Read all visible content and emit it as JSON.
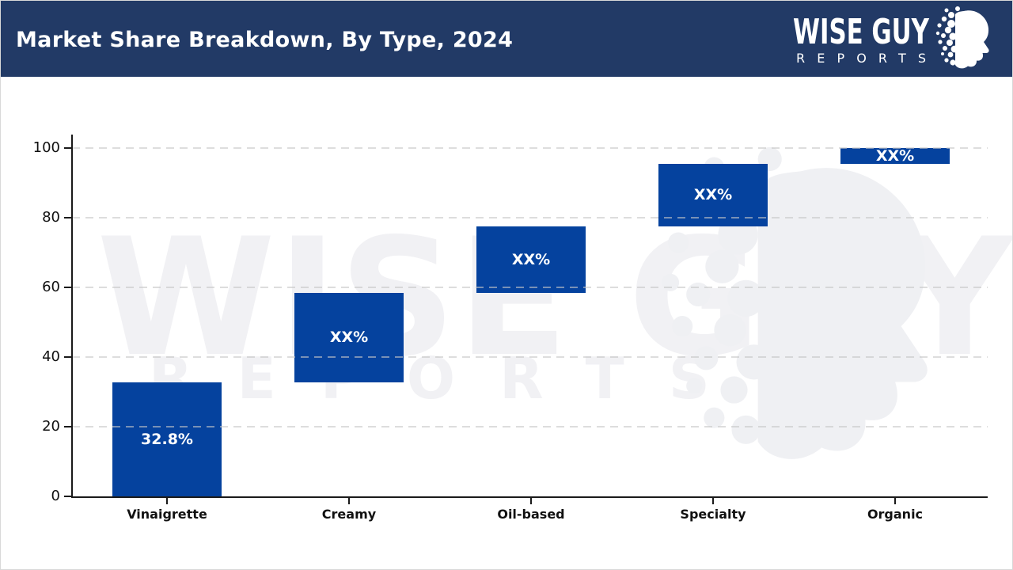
{
  "header": {
    "title": "Market Share Breakdown, By Type, 2024"
  },
  "logo": {
    "name": "WISE GUY",
    "subtitle": "REPORTS"
  },
  "watermark": {
    "name": "WISE GUY",
    "subtitle": "REPORTS"
  },
  "chart_data": {
    "type": "bar",
    "subtype": "waterfall",
    "title": "Market Share Breakdown, By Type, 2024",
    "categories": [
      "Vinaigrette",
      "Creamy",
      "Oil-based",
      "Specialty",
      "Organic"
    ],
    "series": [
      {
        "name": "Vinaigrette",
        "start": 0,
        "end": 32.8,
        "label": "32.8%"
      },
      {
        "name": "Creamy",
        "start": 32.8,
        "end": 58.4,
        "label": "XX%"
      },
      {
        "name": "Oil-based",
        "start": 58.4,
        "end": 77.5,
        "label": "XX%"
      },
      {
        "name": "Specialty",
        "start": 77.5,
        "end": 95.5,
        "label": "XX%"
      },
      {
        "name": "Organic",
        "start": 95.5,
        "end": 100,
        "label": "XX%"
      }
    ],
    "xlabel": "",
    "ylabel": "",
    "ylim": [
      0,
      104
    ],
    "yticks": [
      0,
      20,
      40,
      60,
      80,
      100
    ],
    "grid": "horizontal-dashed-over-bars",
    "legend": "none",
    "bar_color": "#05429E",
    "bar_label_color": "#ffffff"
  },
  "colors": {
    "header_bg": "#223A66",
    "bar": "#05429E",
    "axis": "#1a1a1a",
    "gridline": "#dedede",
    "watermark": "#f1f1f4"
  }
}
